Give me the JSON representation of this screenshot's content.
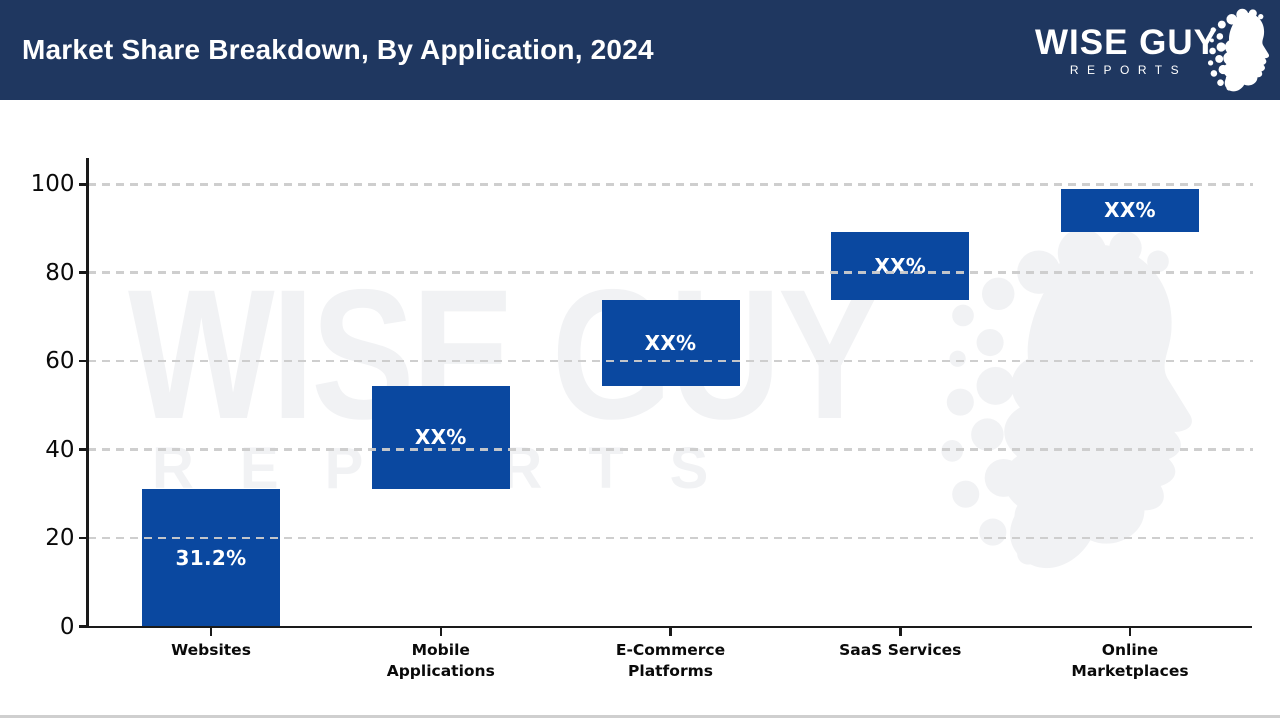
{
  "header": {
    "title": "Market Share Breakdown, By Application, 2024",
    "logo_primary": "WISE GUY",
    "logo_secondary": "REPORTS",
    "bg_color": "#1f3760"
  },
  "watermark": {
    "primary": "WISE GUY",
    "secondary": "REPORTS"
  },
  "chart_data": {
    "type": "bar",
    "subtype": "waterfall",
    "title": "Market Share Breakdown, By Application, 2024",
    "categories": [
      "Websites",
      "Mobile Applications",
      "E-Commerce Platforms",
      "SaaS Services",
      "Online Marketplaces"
    ],
    "category_lines": [
      [
        "Websites"
      ],
      [
        "Mobile",
        "Applications"
      ],
      [
        "E-Commerce",
        "Platforms"
      ],
      [
        "SaaS Services"
      ],
      [
        "Online",
        "Marketplaces"
      ]
    ],
    "segments": [
      {
        "category": "Websites",
        "start": 0,
        "end": 31.2,
        "label": "31.2%"
      },
      {
        "category": "Mobile Applications",
        "start": 31.2,
        "end": 54.4,
        "label": "XX%"
      },
      {
        "category": "E-Commerce Platforms",
        "start": 54.4,
        "end": 73.9,
        "label": "XX%"
      },
      {
        "category": "SaaS Services",
        "start": 73.9,
        "end": 89.2,
        "label": "XX%"
      },
      {
        "category": "Online Marketplaces",
        "start": 89.2,
        "end": 99.0,
        "label": "XX%"
      }
    ],
    "xlabel": "",
    "ylabel": "",
    "ylim": [
      0,
      100
    ],
    "yticks": [
      0,
      20,
      40,
      60,
      80,
      100
    ],
    "grid": "horizontal-dashed",
    "legend": "none",
    "bar_color": "#0a48a0",
    "bar_label_color": "#ffffff",
    "axis_color": "#1a1a1a",
    "grid_color": "#cccccc"
  }
}
